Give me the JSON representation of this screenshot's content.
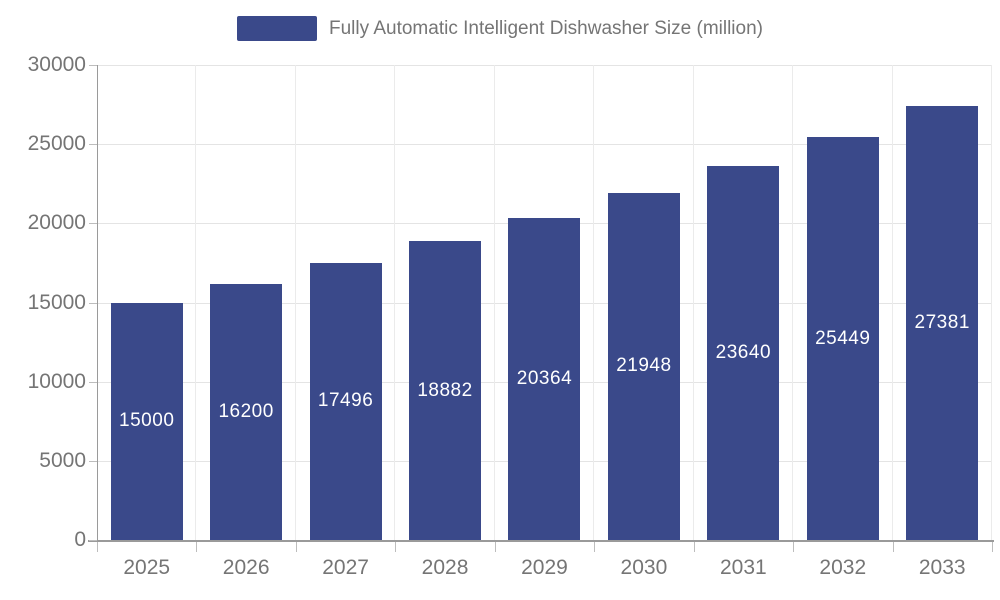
{
  "colors": {
    "bar": "#3A498A",
    "bar_label": "#ffffff",
    "axis_text": "#757575",
    "axis_line": "#9a9a9a",
    "gridline": "#e4e4e4"
  },
  "legend": {
    "label": "Fully Automatic Intelligent Dishwasher Size (million)"
  },
  "chart_data": {
    "type": "bar",
    "title": "Fully Automatic Intelligent Dishwasher Size (million)",
    "legend_entries": [
      "Fully Automatic Intelligent Dishwasher Size (million)"
    ],
    "legend_position": "top-center",
    "categories": [
      "2025",
      "2026",
      "2027",
      "2028",
      "2029",
      "2030",
      "2031",
      "2032",
      "2033"
    ],
    "series": [
      {
        "name": "Fully Automatic Intelligent Dishwasher Size (million)",
        "values": [
          15000,
          16200,
          17496,
          18882,
          20364,
          21948,
          23640,
          25449,
          27381
        ]
      }
    ],
    "data_labels": [
      "15000",
      "16200",
      "17496",
      "18882",
      "20364",
      "21948",
      "23640",
      "25449",
      "27381"
    ],
    "data_label_position": "inside-center",
    "xlabel": "",
    "ylabel": "",
    "ylim": [
      0,
      30000
    ],
    "y_ticks": [
      0,
      5000,
      10000,
      15000,
      20000,
      25000,
      30000
    ],
    "grid": true
  }
}
